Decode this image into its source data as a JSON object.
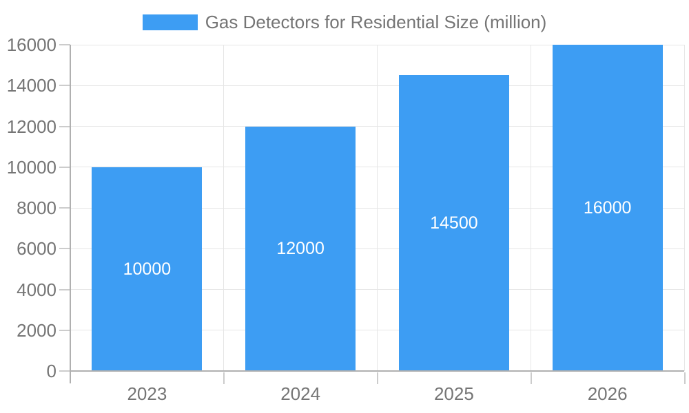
{
  "legend": {
    "label": "Gas Detectors for Residential Size (million)"
  },
  "chart_data": {
    "type": "bar",
    "title": "Gas Detectors for Residential Size (million)",
    "categories": [
      "2023",
      "2024",
      "2025",
      "2026"
    ],
    "series": [
      {
        "name": "Gas Detectors for Residential Size (million)",
        "values": [
          10000,
          12000,
          14500,
          16000
        ]
      }
    ],
    "values": [
      10000,
      12000,
      14500,
      16000
    ],
    "bar_value_labels": [
      "10000",
      "12000",
      "14500",
      "16000"
    ],
    "xlabel": "",
    "ylabel": "",
    "ylim": [
      0,
      16000
    ],
    "yticks": [
      0,
      2000,
      4000,
      6000,
      8000,
      10000,
      12000,
      14000,
      16000
    ],
    "ytick_labels": [
      "0",
      "2000",
      "4000",
      "6000",
      "8000",
      "10000",
      "12000",
      "14000",
      "16000"
    ],
    "grid": true,
    "legend_position": "top",
    "colors": {
      "bar": "#3d9df3",
      "axis_text": "#757575",
      "value_label": "#ffffff",
      "gridline": "#e6e6e6",
      "axis_line": "#b0b0b0",
      "tick": "#cccccc",
      "background": "#ffffff"
    }
  }
}
